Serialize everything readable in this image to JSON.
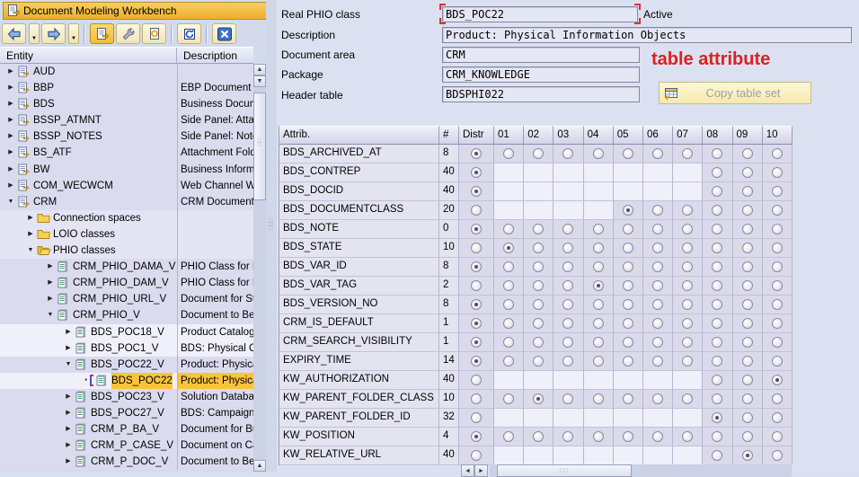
{
  "window": {
    "title": "Document Modeling Workbench"
  },
  "toolbar": {
    "buttons": [
      {
        "name": "back",
        "icon": "back-arrow-icon",
        "dropdown": true
      },
      {
        "name": "forward",
        "icon": "forward-arrow-icon",
        "dropdown": true
      },
      {
        "name": "display-object",
        "icon": "display-object-icon",
        "pressed": true
      },
      {
        "name": "tools",
        "icon": "wrench-icon"
      },
      {
        "name": "data-model",
        "icon": "data-model-icon"
      },
      {
        "name": "refresh",
        "icon": "refresh-icon"
      },
      {
        "name": "close",
        "icon": "close-icon"
      }
    ]
  },
  "tree": {
    "header": {
      "entity": "Entity",
      "description": "Description"
    },
    "rows": [
      {
        "level": 0,
        "toggle": "collapsed",
        "icon": "entity-icon",
        "label": "AUD",
        "desc": "",
        "band": "dark"
      },
      {
        "level": 0,
        "toggle": "collapsed",
        "icon": "entity-icon",
        "label": "BBP",
        "desc": "EBP Document A",
        "band": "dark"
      },
      {
        "level": 0,
        "toggle": "collapsed",
        "icon": "entity-icon",
        "label": "BDS",
        "desc": "Business Docume",
        "band": "dark"
      },
      {
        "level": 0,
        "toggle": "collapsed",
        "icon": "entity-icon",
        "label": "BSSP_ATMNT",
        "desc": "Side Panel: Atta",
        "band": "dark"
      },
      {
        "level": 0,
        "toggle": "collapsed",
        "icon": "entity-icon",
        "label": "BSSP_NOTES",
        "desc": "Side Panel: Note",
        "band": "dark"
      },
      {
        "level": 0,
        "toggle": "collapsed",
        "icon": "entity-icon",
        "label": "BS_ATF",
        "desc": "Attachment Folde",
        "band": "dark"
      },
      {
        "level": 0,
        "toggle": "collapsed",
        "icon": "entity-icon",
        "label": "BW",
        "desc": "Business Informa",
        "band": "dark"
      },
      {
        "level": 0,
        "toggle": "collapsed",
        "icon": "entity-icon",
        "label": "COM_WECWCM",
        "desc": "Web Channel We",
        "band": "dark"
      },
      {
        "level": 0,
        "toggle": "expanded",
        "icon": "entity-icon",
        "label": "CRM",
        "desc": "CRM Documents",
        "band": "dark"
      },
      {
        "level": 1,
        "toggle": "collapsed",
        "icon": "folder-icon",
        "label": "Connection spaces",
        "desc": "",
        "band": "mid"
      },
      {
        "level": 1,
        "toggle": "collapsed",
        "icon": "folder-icon",
        "label": "LOIO classes",
        "desc": "",
        "band": "mid"
      },
      {
        "level": 1,
        "toggle": "expanded",
        "icon": "folder-open-icon",
        "label": "PHIO classes",
        "desc": "",
        "band": "mid"
      },
      {
        "level": 2,
        "toggle": "collapsed",
        "icon": "class-icon",
        "label": "CRM_PHIO_DAMA_V",
        "desc": "PHIO Class for D",
        "band": "dark"
      },
      {
        "level": 2,
        "toggle": "collapsed",
        "icon": "class-icon",
        "label": "CRM_PHIO_DAM_V",
        "desc": "PHIO Class for D",
        "band": "dark"
      },
      {
        "level": 2,
        "toggle": "collapsed",
        "icon": "class-icon",
        "label": "CRM_PHIO_URL_V",
        "desc": "Document for St",
        "band": "dark"
      },
      {
        "level": 2,
        "toggle": "expanded",
        "icon": "class-icon",
        "label": "CRM_PHIO_V",
        "desc": "Document to Be",
        "band": "dark"
      },
      {
        "level": 3,
        "toggle": "collapsed",
        "icon": "class-icon",
        "label": "BDS_POC18_V",
        "desc": "Product Catalog:",
        "band": "light"
      },
      {
        "level": 3,
        "toggle": "collapsed",
        "icon": "class-icon",
        "label": "BDS_POC1_V",
        "desc": "BDS: Physical Ob",
        "band": "light"
      },
      {
        "level": 3,
        "toggle": "expanded",
        "icon": "class-icon",
        "label": "BDS_POC22_V",
        "desc": "Product: Physica",
        "band": "dark"
      },
      {
        "level": 4,
        "toggle": "leaf",
        "icon": "class-icon",
        "label": "BDS_POC22",
        "desc": "Product: Physica",
        "band": "light",
        "selected": true
      },
      {
        "level": 3,
        "toggle": "collapsed",
        "icon": "class-icon",
        "label": "BDS_POC23_V",
        "desc": "Solution Databas",
        "band": "dark"
      },
      {
        "level": 3,
        "toggle": "collapsed",
        "icon": "class-icon",
        "label": "BDS_POC27_V",
        "desc": "BDS: Campaigns",
        "band": "dark"
      },
      {
        "level": 3,
        "toggle": "collapsed",
        "icon": "class-icon",
        "label": "CRM_P_BA_V",
        "desc": "Document for Bu",
        "band": "dark"
      },
      {
        "level": 3,
        "toggle": "collapsed",
        "icon": "class-icon",
        "label": "CRM_P_CASE_V",
        "desc": "Document on Ca",
        "band": "dark"
      },
      {
        "level": 3,
        "toggle": "collapsed",
        "icon": "class-icon",
        "label": "CRM_P_DOC_V",
        "desc": "Document to Be",
        "band": "dark"
      }
    ]
  },
  "form": {
    "real_phio_class": {
      "label": "Real PHIO class",
      "value": "BDS_POC22",
      "status": "Active"
    },
    "description": {
      "label": "Description",
      "value": "Product: Physical Information Objects"
    },
    "document_area": {
      "label": "Document area",
      "value": "CRM"
    },
    "package": {
      "label": "Package",
      "value": "CRM_KNOWLEDGE"
    },
    "header_table": {
      "label": "Header table",
      "value": "BDSPHI022"
    },
    "annotation": "table attribute",
    "copy_table_button": "Copy table set"
  },
  "attr_table": {
    "headers": [
      "Attrib.",
      "#",
      "Distr",
      "01",
      "02",
      "03",
      "04",
      "05",
      "06",
      "07",
      "08",
      "09",
      "10"
    ],
    "rows": [
      {
        "name": "BDS_ARCHIVED_AT",
        "len": "8",
        "cells": [
          "x",
          "o",
          "o",
          "o",
          "o",
          "o",
          "o",
          "o",
          "o",
          "o",
          "o"
        ]
      },
      {
        "name": "BDS_CONTREP",
        "len": "40",
        "cells": [
          "x",
          "",
          "",
          "",
          "",
          "",
          "",
          "",
          "o",
          "o",
          "o"
        ]
      },
      {
        "name": "BDS_DOCID",
        "len": "40",
        "cells": [
          "x",
          "",
          "",
          "",
          "",
          "",
          "",
          "",
          "o",
          "o",
          "o"
        ]
      },
      {
        "name": "BDS_DOCUMENTCLASS",
        "len": "20",
        "cells": [
          "o",
          "",
          "",
          "",
          "",
          "x",
          "o",
          "o",
          "o",
          "o",
          "o"
        ]
      },
      {
        "name": "BDS_NOTE",
        "len": "0",
        "cells": [
          "x",
          "o",
          "o",
          "o",
          "o",
          "o",
          "o",
          "o",
          "o",
          "o",
          "o"
        ]
      },
      {
        "name": "BDS_STATE",
        "len": "10",
        "cells": [
          "o",
          "x",
          "o",
          "o",
          "o",
          "o",
          "o",
          "o",
          "o",
          "o",
          "o"
        ]
      },
      {
        "name": "BDS_VAR_ID",
        "len": "8",
        "cells": [
          "x",
          "o",
          "o",
          "o",
          "o",
          "o",
          "o",
          "o",
          "o",
          "o",
          "o"
        ]
      },
      {
        "name": "BDS_VAR_TAG",
        "len": "2",
        "cells": [
          "o",
          "o",
          "o",
          "o",
          "x",
          "o",
          "o",
          "o",
          "o",
          "o",
          "o"
        ]
      },
      {
        "name": "BDS_VERSION_NO",
        "len": "8",
        "cells": [
          "x",
          "o",
          "o",
          "o",
          "o",
          "o",
          "o",
          "o",
          "o",
          "o",
          "o"
        ]
      },
      {
        "name": "CRM_IS_DEFAULT",
        "len": "1",
        "cells": [
          "x",
          "o",
          "o",
          "o",
          "o",
          "o",
          "o",
          "o",
          "o",
          "o",
          "o"
        ]
      },
      {
        "name": "CRM_SEARCH_VISIBILITY",
        "len": "1",
        "cells": [
          "x",
          "o",
          "o",
          "o",
          "o",
          "o",
          "o",
          "o",
          "o",
          "o",
          "o"
        ]
      },
      {
        "name": "EXPIRY_TIME",
        "len": "14",
        "cells": [
          "x",
          "o",
          "o",
          "o",
          "o",
          "o",
          "o",
          "o",
          "o",
          "o",
          "o"
        ]
      },
      {
        "name": "KW_AUTHORIZATION",
        "len": "40",
        "cells": [
          "o",
          "",
          "",
          "",
          "",
          "",
          "",
          "",
          "o",
          "o",
          "x"
        ]
      },
      {
        "name": "KW_PARENT_FOLDER_CLASS",
        "len": "10",
        "cells": [
          "o",
          "o",
          "x",
          "o",
          "o",
          "o",
          "o",
          "o",
          "o",
          "o",
          "o"
        ]
      },
      {
        "name": "KW_PARENT_FOLDER_ID",
        "len": "32",
        "cells": [
          "o",
          "",
          "",
          "",
          "",
          "",
          "",
          "",
          "x",
          "o",
          "o"
        ]
      },
      {
        "name": "KW_POSITION",
        "len": "4",
        "cells": [
          "x",
          "o",
          "o",
          "o",
          "o",
          "o",
          "o",
          "o",
          "o",
          "o",
          "o"
        ]
      },
      {
        "name": "KW_RELATIVE_URL",
        "len": "40",
        "cells": [
          "o",
          "",
          "",
          "",
          "",
          "",
          "",
          "",
          "o",
          "x",
          "o"
        ]
      }
    ]
  },
  "colors": {
    "title_bar": "#F0B23C",
    "tree_selection": "#F8C43C",
    "annotation_red": "#DC2020",
    "panel_bg": "#DBE1F0",
    "tree_bg": "#DBDBEF",
    "disabled_text": "#A2A2A2"
  }
}
